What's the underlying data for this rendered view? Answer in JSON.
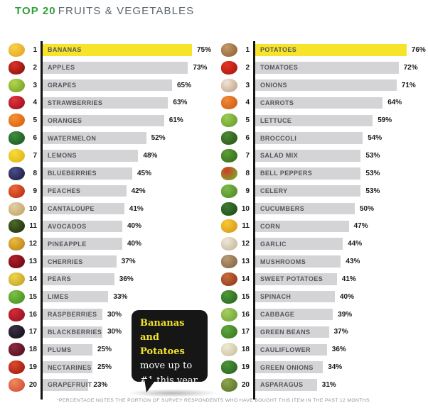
{
  "header": {
    "title_accent": "TOP 20",
    "title_rest": "FRUITS & VEGETABLES"
  },
  "callout": {
    "highlight": "Bananas and Potatoes",
    "rest": "move up to #1 this year"
  },
  "footer": {
    "note": "*PERCENTAGE NOTES THE PORTION OF SURVEY RESPONDENTS WHO HAVE BOUGHT THIS ITEM IN THE PAST 12 MONTHS."
  },
  "colors": {
    "accent_green": "#2F9E3B",
    "title_gray": "#5A646D",
    "bar_gray": "#D4D4D6",
    "bar_highlight_yellow": "#F7E42A",
    "axis_black": "#151515",
    "callout_bg": "#161616",
    "callout_yellow": "#F0E32B"
  },
  "chart_data": [
    {
      "type": "bar",
      "orientation": "horizontal",
      "series_name": "Fruits",
      "title": "Top 20 Fruits",
      "unit": "%",
      "xlim": [
        0,
        100
      ],
      "value_labels": true,
      "bar_color": "#D4D4D6",
      "highlight": {
        "category": "Bananas",
        "color": "#F7E42A",
        "note": "moved up to #1 this year"
      },
      "categories": [
        "Bananas",
        "Apples",
        "Grapes",
        "Strawberries",
        "Oranges",
        "Watermelon",
        "Lemons",
        "Blueberries",
        "Peaches",
        "Cantaloupe",
        "Avocados",
        "Pineapple",
        "Cherries",
        "Pears",
        "Limes",
        "Raspberries",
        "Blackberries",
        "Plums",
        "Nectarines",
        "Grapefruit"
      ],
      "values": [
        75,
        73,
        65,
        63,
        61,
        52,
        48,
        45,
        42,
        41,
        40,
        40,
        37,
        36,
        33,
        30,
        30,
        25,
        25,
        23
      ]
    },
    {
      "type": "bar",
      "orientation": "horizontal",
      "series_name": "Vegetables",
      "title": "Top 20 Vegetables",
      "unit": "%",
      "xlim": [
        0,
        100
      ],
      "value_labels": true,
      "bar_color": "#D4D4D6",
      "highlight": {
        "category": "Potatoes",
        "color": "#F7E42A",
        "note": "moved up to #1 this year"
      },
      "categories": [
        "Potatoes",
        "Tomatoes",
        "Onions",
        "Carrots",
        "Lettuce",
        "Broccoli",
        "Salad Mix",
        "Bell Peppers",
        "Celery",
        "Cucumbers",
        "Corn",
        "Garlic",
        "Mushrooms",
        "Sweet Potatoes",
        "Spinach",
        "Cabbage",
        "Green Beans",
        "Cauliflower",
        "Green Onions",
        "Asparagus"
      ],
      "values": [
        76,
        72,
        71,
        64,
        59,
        54,
        53,
        53,
        53,
        50,
        47,
        44,
        43,
        41,
        40,
        39,
        37,
        36,
        34,
        31
      ]
    }
  ],
  "columns": [
    {
      "id": "fruits",
      "items": [
        {
          "rank": "1",
          "label": "BANANAS",
          "pct": "75%",
          "value": 75,
          "icon": "bananas-icon",
          "c1": "#F9D348",
          "c2": "#E8A825",
          "highlight": true
        },
        {
          "rank": "2",
          "label": "APPLES",
          "pct": "73%",
          "value": 73,
          "icon": "apples-icon",
          "c1": "#E03226",
          "c2": "#8F1410",
          "highlight": false
        },
        {
          "rank": "3",
          "label": "GRAPES",
          "pct": "65%",
          "value": 65,
          "icon": "grapes-icon",
          "c1": "#B5D44B",
          "c2": "#7BA82C",
          "highlight": false
        },
        {
          "rank": "4",
          "label": "STRAWBERRIES",
          "pct": "63%",
          "value": 63,
          "icon": "strawberries-icon",
          "c1": "#E43640",
          "c2": "#A31220",
          "highlight": false
        },
        {
          "rank": "5",
          "label": "ORANGES",
          "pct": "61%",
          "value": 61,
          "icon": "oranges-icon",
          "c1": "#F59231",
          "c2": "#DC6414",
          "highlight": false
        },
        {
          "rank": "6",
          "label": "WATERMELON",
          "pct": "52%",
          "value": 52,
          "icon": "watermelon-icon",
          "c1": "#3E8F3E",
          "c2": "#1F5E24",
          "highlight": false
        },
        {
          "rank": "7",
          "label": "LEMONS",
          "pct": "48%",
          "value": 48,
          "icon": "lemons-icon",
          "c1": "#F8DC3A",
          "c2": "#E3B81C",
          "highlight": false
        },
        {
          "rank": "8",
          "label": "BLUEBERRIES",
          "pct": "45%",
          "value": 45,
          "icon": "blueberries-icon",
          "c1": "#4A4E8C",
          "c2": "#23244A",
          "highlight": false
        },
        {
          "rank": "9",
          "label": "PEACHES",
          "pct": "42%",
          "value": 42,
          "icon": "peaches-icon",
          "c1": "#EB6A35",
          "c2": "#C03218",
          "highlight": false
        },
        {
          "rank": "10",
          "label": "CANTALOUPE",
          "pct": "41%",
          "value": 41,
          "icon": "cantaloupe-icon",
          "c1": "#DFD0A8",
          "c2": "#C9A86A",
          "highlight": false
        },
        {
          "rank": "11",
          "label": "AVOCADOS",
          "pct": "40%",
          "value": 40,
          "icon": "avocados-icon",
          "c1": "#4C6B2B",
          "c2": "#24360F",
          "highlight": false
        },
        {
          "rank": "12",
          "label": "PINEAPPLE",
          "pct": "40%",
          "value": 40,
          "icon": "pineapple-icon",
          "c1": "#EDB93E",
          "c2": "#C08A1D",
          "highlight": false
        },
        {
          "rank": "13",
          "label": "CHERRIES",
          "pct": "37%",
          "value": 37,
          "icon": "cherries-icon",
          "c1": "#B51E2B",
          "c2": "#6E0E15",
          "highlight": false
        },
        {
          "rank": "14",
          "label": "PEARS",
          "pct": "36%",
          "value": 36,
          "icon": "pears-icon",
          "c1": "#EDD54F",
          "c2": "#CBA62A",
          "highlight": false
        },
        {
          "rank": "15",
          "label": "LIMES",
          "pct": "33%",
          "value": 33,
          "icon": "limes-icon",
          "c1": "#7CC242",
          "c2": "#4E9427",
          "highlight": false
        },
        {
          "rank": "16",
          "label": "RASPBERRIES",
          "pct": "30%",
          "value": 30,
          "icon": "raspberries-icon",
          "c1": "#D42A38",
          "c2": "#9C1524",
          "highlight": false
        },
        {
          "rank": "17",
          "label": "BLACKBERRIES",
          "pct": "30%",
          "value": 30,
          "icon": "blackberries-icon",
          "c1": "#3A3142",
          "c2": "#191321",
          "highlight": false
        },
        {
          "rank": "18",
          "label": "PLUMS",
          "pct": "25%",
          "value": 25,
          "icon": "plums-icon",
          "c1": "#8E2A40",
          "c2": "#561325",
          "highlight": false
        },
        {
          "rank": "19",
          "label": "NECTARINES",
          "pct": "25%",
          "value": 25,
          "icon": "nectarines-icon",
          "c1": "#E04A2E",
          "c2": "#A32013",
          "highlight": false
        },
        {
          "rank": "20",
          "label": "GRAPEFRUIT",
          "pct": "23%",
          "value": 23,
          "icon": "grapefruit-icon",
          "c1": "#F08A5A",
          "c2": "#D5543A",
          "highlight": false
        }
      ]
    },
    {
      "id": "vegetables",
      "items": [
        {
          "rank": "1",
          "label": "POTATOES",
          "pct": "76%",
          "value": 76,
          "icon": "potatoes-icon",
          "c1": "#C49A66",
          "c2": "#96683B",
          "highlight": true
        },
        {
          "rank": "2",
          "label": "TOMATOES",
          "pct": "72%",
          "value": 72,
          "icon": "tomatoes-icon",
          "c1": "#E63524",
          "c2": "#AD1B10",
          "highlight": false
        },
        {
          "rank": "3",
          "label": "ONIONS",
          "pct": "71%",
          "value": 71,
          "icon": "onions-icon",
          "c1": "#EFE6D8",
          "c2": "#C9A98E",
          "highlight": false
        },
        {
          "rank": "4",
          "label": "CARROTS",
          "pct": "64%",
          "value": 64,
          "icon": "carrots-icon",
          "c1": "#F08C34",
          "c2": "#D4611A",
          "highlight": false
        },
        {
          "rank": "5",
          "label": "LETTUCE",
          "pct": "59%",
          "value": 59,
          "icon": "lettuce-icon",
          "c1": "#9CCB53",
          "c2": "#6BA32F",
          "highlight": false
        },
        {
          "rank": "6",
          "label": "BROCCOLI",
          "pct": "54%",
          "value": 54,
          "icon": "broccoli-icon",
          "c1": "#4C8A33",
          "c2": "#2C5C1D",
          "highlight": false
        },
        {
          "rank": "7",
          "label": "SALAD MIX",
          "pct": "53%",
          "value": 53,
          "icon": "salad-mix-icon",
          "c1": "#5D9E38",
          "c2": "#37721F",
          "highlight": false
        },
        {
          "rank": "8",
          "label": "BELL PEPPERS",
          "pct": "53%",
          "value": 53,
          "icon": "bell-peppers-icon",
          "c1": "#D43A28",
          "c2": "#7FA32A",
          "highlight": false
        },
        {
          "rank": "9",
          "label": "CELERY",
          "pct": "53%",
          "value": 53,
          "icon": "celery-icon",
          "c1": "#7FB94A",
          "c2": "#52912B",
          "highlight": false
        },
        {
          "rank": "10",
          "label": "CUCUMBERS",
          "pct": "50%",
          "value": 50,
          "icon": "cucumbers-icon",
          "c1": "#3E7A33",
          "c2": "#23511D",
          "highlight": false
        },
        {
          "rank": "11",
          "label": "CORN",
          "pct": "47%",
          "value": 47,
          "icon": "corn-icon",
          "c1": "#F5C835",
          "c2": "#DC9E1B",
          "highlight": false
        },
        {
          "rank": "12",
          "label": "GARLIC",
          "pct": "44%",
          "value": 44,
          "icon": "garlic-icon",
          "c1": "#EFE8D8",
          "c2": "#C9BCA2",
          "highlight": false
        },
        {
          "rank": "13",
          "label": "MUSHROOMS",
          "pct": "43%",
          "value": 43,
          "icon": "mushrooms-icon",
          "c1": "#B99B77",
          "c2": "#8A6B49",
          "highlight": false
        },
        {
          "rank": "14",
          "label": "SWEET POTATOES",
          "pct": "41%",
          "value": 41,
          "icon": "sweet-potatoes-icon",
          "c1": "#C96A3E",
          "c2": "#93401F",
          "highlight": false
        },
        {
          "rank": "15",
          "label": "SPINACH",
          "pct": "40%",
          "value": 40,
          "icon": "spinach-icon",
          "c1": "#4E9A38",
          "c2": "#2D6C21",
          "highlight": false
        },
        {
          "rank": "16",
          "label": "CABBAGE",
          "pct": "39%",
          "value": 39,
          "icon": "cabbage-icon",
          "c1": "#A7CE62",
          "c2": "#77A83C",
          "highlight": false
        },
        {
          "rank": "17",
          "label": "GREEN BEANS",
          "pct": "37%",
          "value": 37,
          "icon": "green-beans-icon",
          "c1": "#61A83C",
          "c2": "#3D7E24",
          "highlight": false
        },
        {
          "rank": "18",
          "label": "CAULIFLOWER",
          "pct": "36%",
          "value": 36,
          "icon": "cauliflower-icon",
          "c1": "#F0EAD6",
          "c2": "#CFC5A4",
          "highlight": false
        },
        {
          "rank": "19",
          "label": "GREEN ONIONS",
          "pct": "34%",
          "value": 34,
          "icon": "green-onions-icon",
          "c1": "#4D9438",
          "c2": "#2C6A22",
          "highlight": false
        },
        {
          "rank": "20",
          "label": "ASPARAGUS",
          "pct": "31%",
          "value": 31,
          "icon": "asparagus-icon",
          "c1": "#8FA54E",
          "c2": "#5F7A2E",
          "highlight": false
        }
      ]
    }
  ]
}
